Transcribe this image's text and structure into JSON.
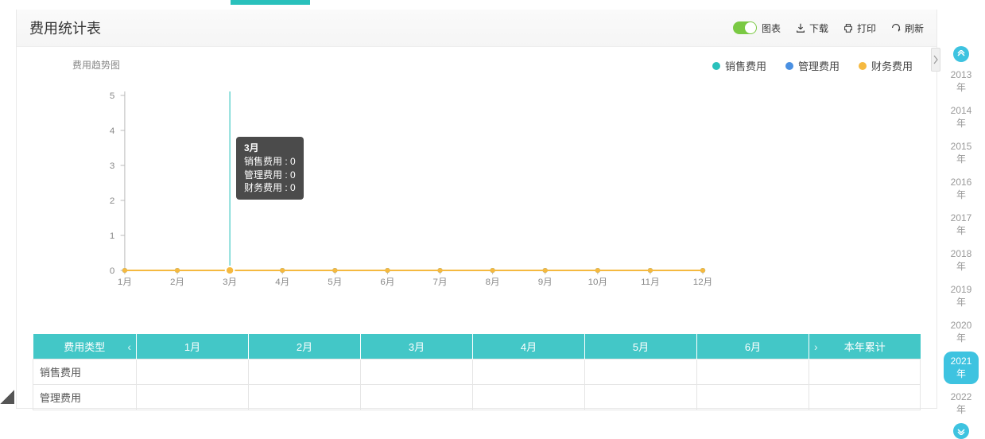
{
  "header": {
    "title": "费用统计表",
    "toggle_label": "图表",
    "download_label": "下载",
    "print_label": "打印",
    "refresh_label": "刷新"
  },
  "chart": {
    "type": "line",
    "title": "费用趋势图",
    "legend": [
      {
        "label": "销售费用",
        "color": "#2ac1bc"
      },
      {
        "label": "管理费用",
        "color": "#4a90e2"
      },
      {
        "label": "财务费用",
        "color": "#f5b940"
      }
    ],
    "x_categories": [
      "1月",
      "2月",
      "3月",
      "4月",
      "5月",
      "6月",
      "7月",
      "8月",
      "9月",
      "10月",
      "11月",
      "12月"
    ],
    "y_ticks": [
      0,
      1,
      2,
      3,
      4,
      5
    ],
    "ylim": [
      0,
      5
    ],
    "series": [
      {
        "name": "销售费用",
        "color": "#2ac1bc",
        "values": [
          0,
          0,
          0,
          0,
          0,
          0,
          0,
          0,
          0,
          0,
          0,
          0
        ]
      },
      {
        "name": "管理费用",
        "color": "#4a90e2",
        "values": [
          0,
          0,
          0,
          0,
          0,
          0,
          0,
          0,
          0,
          0,
          0,
          0
        ]
      },
      {
        "name": "财务费用",
        "color": "#f5b940",
        "values": [
          0,
          0,
          0,
          0,
          0,
          0,
          0,
          0,
          0,
          0,
          0,
          0
        ]
      }
    ],
    "highlight_index": 2,
    "axis_color": "#bbbbbb",
    "grid_color": "#eeeeee",
    "background_color": "#ffffff",
    "marker_radius": 3,
    "line_width": 2,
    "label_fontsize": 11,
    "label_color": "#888888",
    "tooltip": {
      "title": "3月",
      "rows": [
        {
          "label": "销售费用",
          "value": "0"
        },
        {
          "label": "管理费用",
          "value": "0"
        },
        {
          "label": "财务费用",
          "value": "0"
        }
      ]
    }
  },
  "table": {
    "type_header": "费用类型",
    "month_columns": [
      "1月",
      "2月",
      "3月",
      "4月",
      "5月",
      "6月"
    ],
    "total_header": "本年累计",
    "rows": [
      {
        "type": "销售费用",
        "cells": [
          "",
          "",
          "",
          "",
          "",
          ""
        ],
        "total": ""
      },
      {
        "type": "管理费用",
        "cells": [
          "",
          "",
          "",
          "",
          "",
          ""
        ],
        "total": ""
      }
    ]
  },
  "year_rail": {
    "years": [
      "2013年",
      "2014年",
      "2015年",
      "2016年",
      "2017年",
      "2018年",
      "2019年",
      "2020年",
      "2021年",
      "2022年"
    ],
    "active": "2021年"
  },
  "colors": {
    "accent": "#2ac1bc",
    "table_header": "#43c7c7",
    "rail_btn": "#3ec3e0",
    "toggle_on": "#7ac943"
  }
}
